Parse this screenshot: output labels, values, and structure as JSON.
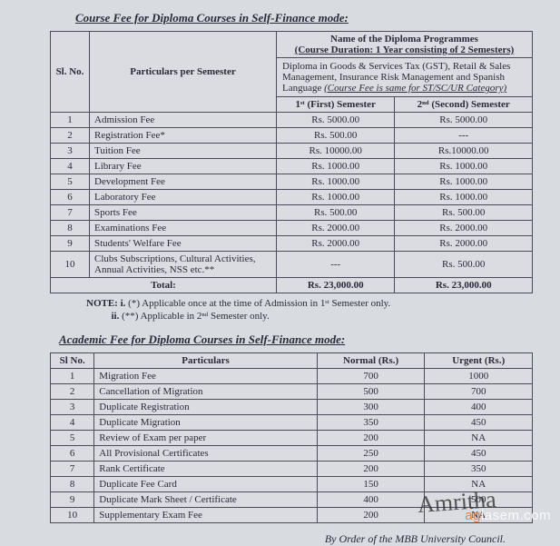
{
  "section1": {
    "title": "Course Fee for Diploma Courses in Self-Finance mode:",
    "header_sl": "Sl. No.",
    "header_part": "Particulars per Semester",
    "prog_title": "Name of the Diploma Programmes",
    "prog_sub": "(Course Duration: 1 Year consisting of 2 Semesters)",
    "prog_desc_1": "Diploma in Goods & Services Tax (GST), Retail & Sales Management, Insurance Risk Management and Spanish Language ",
    "prog_desc_2": "(Course Fee is same for ST/SC/UR Category)",
    "sem1": "1ˢᵗ (First) Semester",
    "sem2": "2ⁿᵈ (Second) Semester",
    "rows": [
      {
        "n": "1",
        "p": "Admission Fee",
        "a": "Rs. 5000.00",
        "b": "Rs. 5000.00"
      },
      {
        "n": "2",
        "p": "Registration Fee*",
        "a": "Rs. 500.00",
        "b": "---"
      },
      {
        "n": "3",
        "p": "Tuition Fee",
        "a": "Rs. 10000.00",
        "b": "Rs.10000.00"
      },
      {
        "n": "4",
        "p": "Library Fee",
        "a": "Rs. 1000.00",
        "b": "Rs. 1000.00"
      },
      {
        "n": "5",
        "p": "Development Fee",
        "a": "Rs. 1000.00",
        "b": "Rs. 1000.00"
      },
      {
        "n": "6",
        "p": "Laboratory Fee",
        "a": "Rs. 1000.00",
        "b": "Rs. 1000.00"
      },
      {
        "n": "7",
        "p": "Sports Fee",
        "a": "Rs. 500.00",
        "b": "Rs. 500.00"
      },
      {
        "n": "8",
        "p": "Examinations Fee",
        "a": "Rs. 2000.00",
        "b": "Rs. 2000.00"
      },
      {
        "n": "9",
        "p": "Students' Welfare Fee",
        "a": "Rs. 2000.00",
        "b": "Rs. 2000.00"
      },
      {
        "n": "10",
        "p": "Clubs Subscriptions, Cultural Activities, Annual Activities, NSS etc.**",
        "a": "---",
        "b": "Rs. 500.00"
      }
    ],
    "total_label": "Total:",
    "total_a": "Rs. 23,000.00",
    "total_b": "Rs. 23,000.00",
    "note_label": "NOTE: i.",
    "note1": " (*) Applicable once at the time of Admission in 1ˢᵗ Semester only.",
    "note2_label": "ii.",
    "note2": " (**) Applicable in 2ⁿᵈ Semester only."
  },
  "section2": {
    "title": "Academic Fee for Diploma Courses in Self-Finance mode:",
    "h_sl": "Sl No.",
    "h_part": "Particulars",
    "h_norm": "Normal (Rs.)",
    "h_urg": "Urgent (Rs.)",
    "rows": [
      {
        "n": "1",
        "p": "Migration Fee",
        "a": "700",
        "b": "1000"
      },
      {
        "n": "2",
        "p": "Cancellation of Migration",
        "a": "500",
        "b": "700"
      },
      {
        "n": "3",
        "p": "Duplicate Registration",
        "a": "300",
        "b": "400"
      },
      {
        "n": "4",
        "p": "Duplicate Migration",
        "a": "350",
        "b": "450"
      },
      {
        "n": "5",
        "p": "Review of Exam per paper",
        "a": "200",
        "b": "NA"
      },
      {
        "n": "6",
        "p": "All Provisional Certificates",
        "a": "250",
        "b": "450"
      },
      {
        "n": "7",
        "p": "Rank Certificate",
        "a": "200",
        "b": "350"
      },
      {
        "n": "8",
        "p": "Duplicate Fee Card",
        "a": "150",
        "b": "NA"
      },
      {
        "n": "9",
        "p": "Duplicate Mark Sheet / Certificate",
        "a": "400",
        "b": "500"
      },
      {
        "n": "10",
        "p": "Supplementary Exam Fee",
        "a": "200",
        "b": "NA"
      }
    ]
  },
  "footer": "By Order of the MBB University Council.",
  "watermark_a": "ag",
  "watermark_b": "lasem.com"
}
